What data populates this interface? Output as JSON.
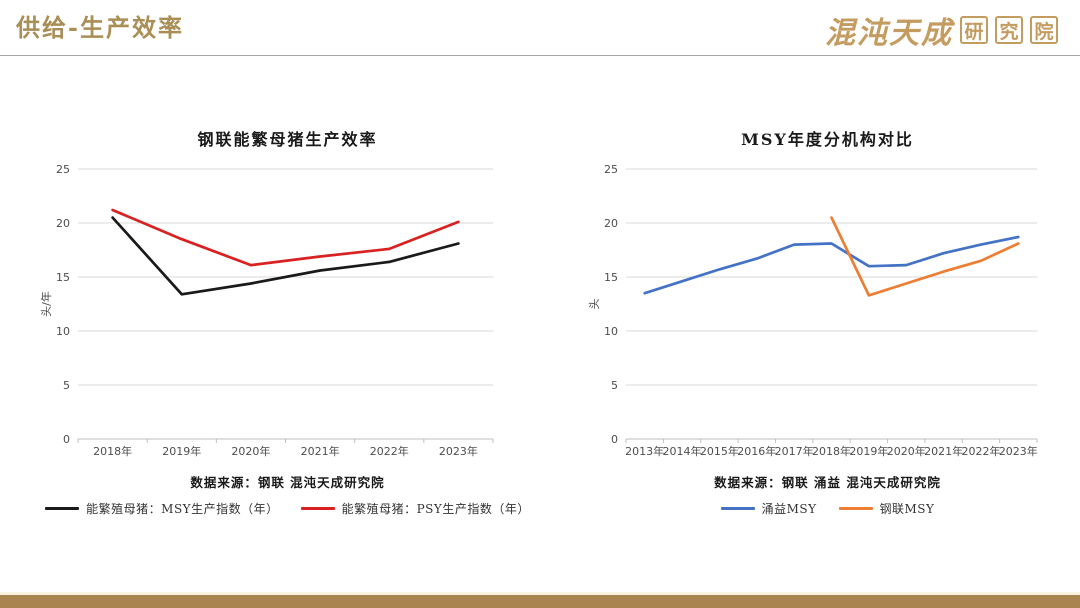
{
  "header": {
    "title": "供给-生产效率",
    "logo_text": "混沌天成",
    "logo_suffix_chars": [
      "研",
      "究",
      "院"
    ]
  },
  "colors": {
    "accent_gold": "#AA8450",
    "header_title_gold": "#A98E55",
    "logo_gold": "#C49C60",
    "gridline": "#D9D9D9",
    "axis_line": "#BFBFBF",
    "tick_label": "#4D4D4D",
    "chart_title_text": "#1A1A1A"
  },
  "chart_data": [
    {
      "type": "line",
      "title": "钢联能繁母猪生产效率",
      "ylabel": "头/年",
      "xlabel": "",
      "categories": [
        "2018年",
        "2019年",
        "2020年",
        "2021年",
        "2022年",
        "2023年"
      ],
      "ylim": [
        0,
        25
      ],
      "yticks": [
        0,
        5,
        10,
        15,
        20,
        25
      ],
      "grid": true,
      "legend_position": "bottom",
      "series": [
        {
          "name": "能繁殖母猪：MSY生产指数（年）",
          "color": "#1A1A1A",
          "values": [
            20.5,
            13.4,
            14.4,
            15.6,
            16.4,
            18.1
          ]
        },
        {
          "name": "能繁殖母猪：PSY生产指数（年）",
          "color": "#D92121",
          "values": [
            21.2,
            18.5,
            16.1,
            16.9,
            17.6,
            20.1
          ]
        }
      ],
      "source": "数据来源：钢联 混沌天成研究院"
    },
    {
      "type": "line",
      "title": "MSY年度分机构对比",
      "ylabel": "头",
      "xlabel": "",
      "categories": [
        "2013年",
        "2014年",
        "2015年",
        "2016年",
        "2017年",
        "2018年",
        "2019年",
        "2020年",
        "2021年",
        "2022年",
        "2023年"
      ],
      "ylim": [
        0,
        25
      ],
      "yticks": [
        0,
        5,
        10,
        15,
        20,
        25
      ],
      "grid": true,
      "legend_position": "bottom",
      "series": [
        {
          "name": "涌益MSY",
          "color": "#4472C4",
          "values": [
            13.5,
            14.6,
            15.7,
            16.7,
            18.0,
            18.1,
            16.0,
            16.1,
            17.2,
            18.0,
            18.7
          ]
        },
        {
          "name": "钢联MSY",
          "color": "#ED7D31",
          "values": [
            null,
            null,
            null,
            null,
            null,
            20.5,
            13.3,
            14.4,
            15.5,
            16.5,
            18.1
          ]
        }
      ],
      "source": "数据来源：钢联 涌益 混沌天成研究院"
    }
  ]
}
